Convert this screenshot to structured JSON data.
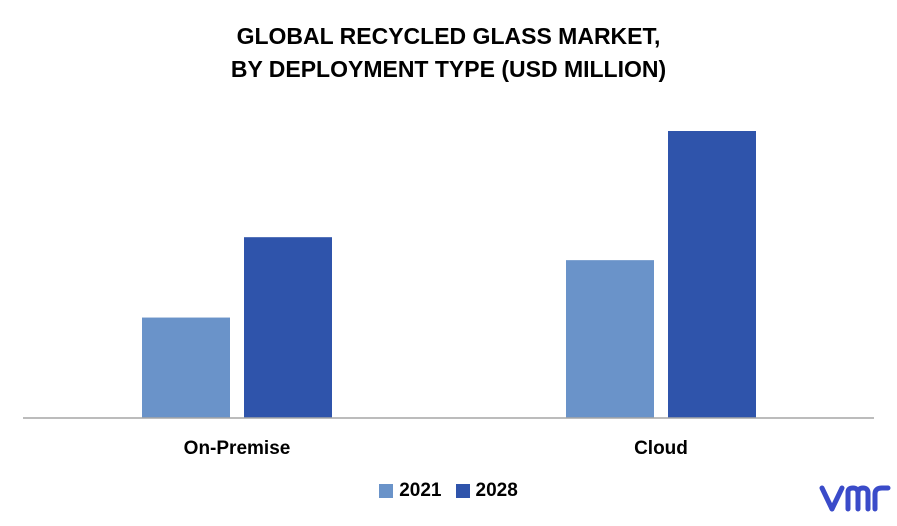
{
  "chart_data": {
    "type": "bar",
    "title_lines": [
      "GLOBAL RECYCLED GLASS MARKET,",
      "BY DEPLOYMENT TYPE (USD MILLION)"
    ],
    "categories": [
      "On-Premise",
      "Cloud"
    ],
    "series": [
      {
        "name": "2021",
        "values": [
          35,
          55
        ],
        "color": "#6a93c9"
      },
      {
        "name": "2028",
        "values": [
          63,
          100
        ],
        "color": "#2f54ab"
      }
    ],
    "ylim": [
      0,
      110
    ],
    "grid": false,
    "legend_position": "bottom"
  },
  "branding": {
    "logo_text": "vmr",
    "logo_color": "#3a4bc9"
  }
}
